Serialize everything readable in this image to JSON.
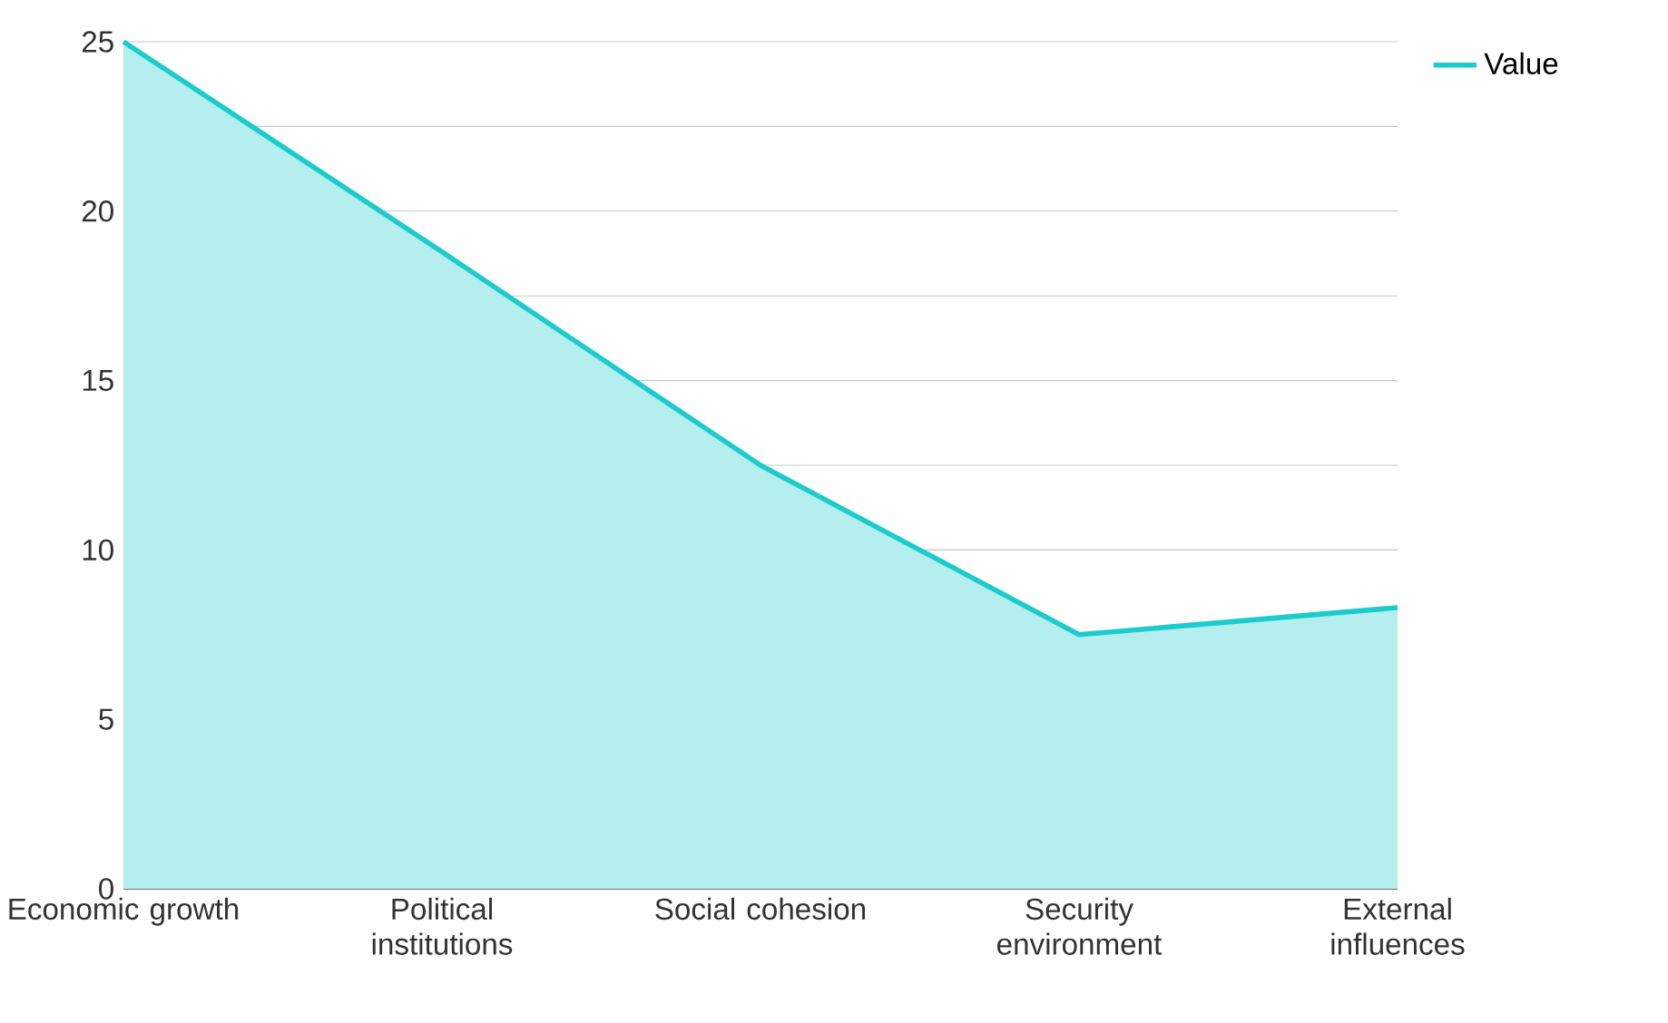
{
  "chart_data": {
    "type": "area",
    "categories": [
      "Economic growth",
      "Political institutions",
      "Social cohesion",
      "Security environment",
      "External influences"
    ],
    "series": [
      {
        "name": "Value",
        "color": "#1ccbcb",
        "values": [
          25,
          18.8,
          12.5,
          7.5,
          8.3
        ]
      }
    ],
    "ylim": [
      0,
      25
    ],
    "yticks": [
      0,
      {
        "value": 2.5,
        "label": null
      },
      5,
      {
        "value": 7.5,
        "label": null
      },
      10,
      {
        "value": 12.5,
        "label": null
      },
      15,
      {
        "value": 17.5,
        "label": null
      },
      20,
      {
        "value": 22.5,
        "label": null
      },
      25
    ],
    "grid": "y",
    "legend": "top right"
  }
}
